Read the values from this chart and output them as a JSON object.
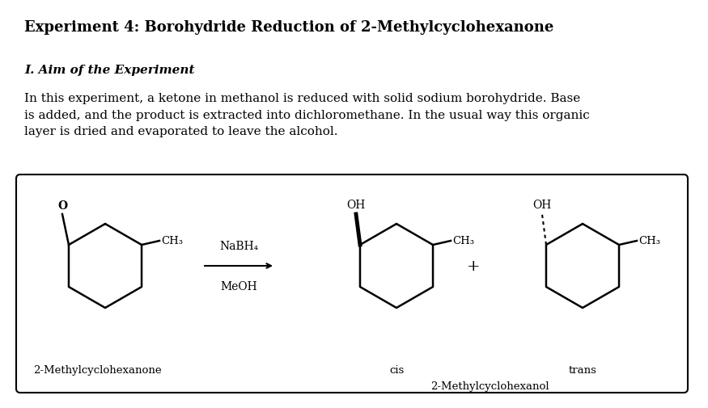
{
  "bg_color": "#ffffff",
  "title": "Experiment 4: Borohydride Reduction of 2-Methylcyclohexanone",
  "section_header": "I. Aim of the Experiment",
  "body_text": "In this experiment, a ketone in methanol is reduced with solid sodium borohydride. Base\nis added, and the product is extracted into dichloromethane. In the usual way this organic\nlayer is dried and evaporated to leave the alcohol.",
  "reagent_line1": "NaBH₄",
  "reagent_line2": "MeOH",
  "label_reactant": "2-Methylcyclohexanone",
  "label_cis": "cis",
  "label_trans": "trans",
  "label_product": "2-Methylcyclohexanol",
  "plus_sign": "+",
  "text_color": "#000000",
  "box_edge_color": "#000000",
  "title_fontsize": 13,
  "section_fontsize": 11,
  "body_fontsize": 11,
  "chem_fontsize": 10
}
